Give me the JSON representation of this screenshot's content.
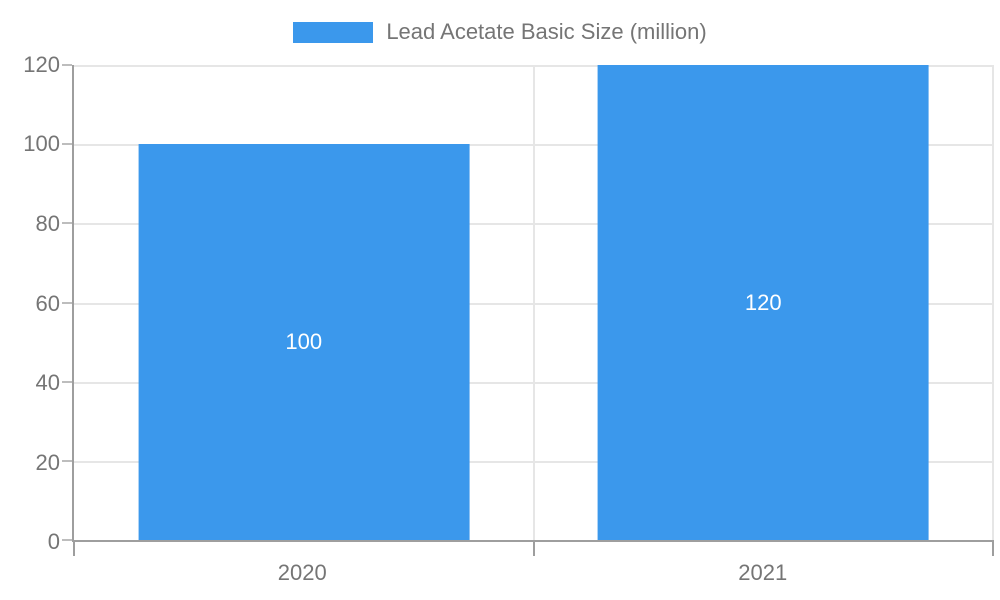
{
  "chart_data": {
    "type": "bar",
    "title": "Lead Acetate Basic Size (million)",
    "categories": [
      "2020",
      "2021"
    ],
    "series": [
      {
        "name": "Lead Acetate Basic Size (million)",
        "values": [
          100,
          120
        ]
      }
    ],
    "xlabel": "",
    "ylabel": "",
    "ylim": [
      0,
      120
    ],
    "yticks": [
      0,
      20,
      40,
      60,
      80,
      100,
      120
    ],
    "grid": true,
    "legend_position": "top-center",
    "bar_width_frac": 0.72,
    "data_labels_visible": true,
    "colors": {
      "bar": "#3b98ec",
      "axis": "#9e9e9e",
      "grid": "#e6e6e6",
      "tick": "#bdbdbd",
      "text": "#757575",
      "bar-label": "#ffffff",
      "background": "#ffffff"
    }
  }
}
